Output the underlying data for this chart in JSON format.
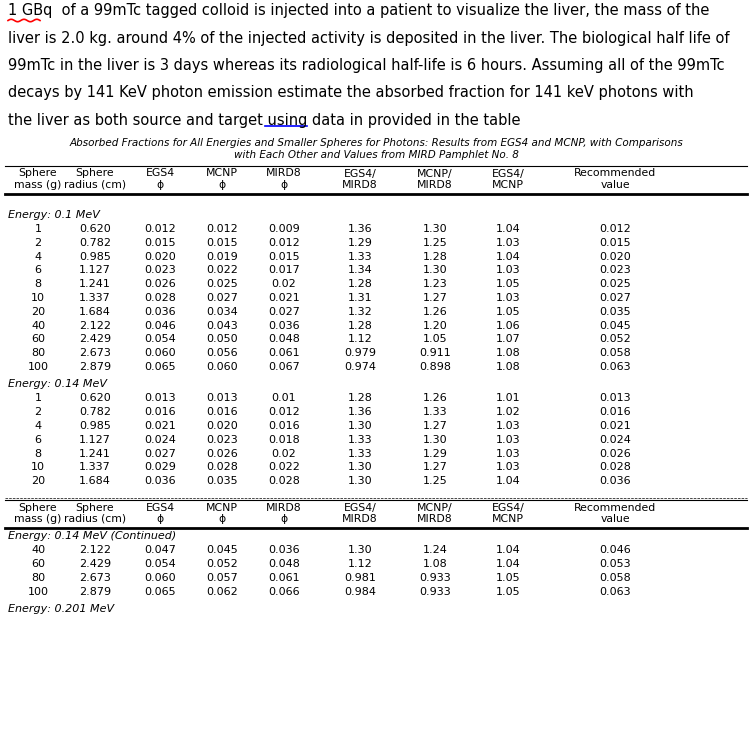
{
  "table_title_line1": "Absorbed Fractions for All Energies and Smaller Spheres for Photons: Results from EGS4 and MCNP, with Comparisons",
  "table_title_line2": "with Each Other and Values from MIRD Pamphlet No. 8",
  "col_headers": [
    "Sphere\nmass (g)",
    "Sphere\nradius (cm)",
    "EGS4\nϕ",
    "MCNP\nϕ",
    "MIRD8\nϕ",
    "EGS4/\nMIRD8",
    "MCNP/\nMIRD8",
    "EGS4/\nMCNP",
    "Recommended\nvalue"
  ],
  "energy_01_label": "Energy: 0.1 MeV",
  "energy_01_data": [
    [
      "1",
      "0.620",
      "0.012",
      "0.012",
      "0.009",
      "1.36",
      "1.30",
      "1.04",
      "0.012"
    ],
    [
      "2",
      "0.782",
      "0.015",
      "0.015",
      "0.012",
      "1.29",
      "1.25",
      "1.03",
      "0.015"
    ],
    [
      "4",
      "0.985",
      "0.020",
      "0.019",
      "0.015",
      "1.33",
      "1.28",
      "1.04",
      "0.020"
    ],
    [
      "6",
      "1.127",
      "0.023",
      "0.022",
      "0.017",
      "1.34",
      "1.30",
      "1.03",
      "0.023"
    ],
    [
      "8",
      "1.241",
      "0.026",
      "0.025",
      "0.02",
      "1.28",
      "1.23",
      "1.05",
      "0.025"
    ],
    [
      "10",
      "1.337",
      "0.028",
      "0.027",
      "0.021",
      "1.31",
      "1.27",
      "1.03",
      "0.027"
    ],
    [
      "20",
      "1.684",
      "0.036",
      "0.034",
      "0.027",
      "1.32",
      "1.26",
      "1.05",
      "0.035"
    ],
    [
      "40",
      "2.122",
      "0.046",
      "0.043",
      "0.036",
      "1.28",
      "1.20",
      "1.06",
      "0.045"
    ],
    [
      "60",
      "2.429",
      "0.054",
      "0.050",
      "0.048",
      "1.12",
      "1.05",
      "1.07",
      "0.052"
    ],
    [
      "80",
      "2.673",
      "0.060",
      "0.056",
      "0.061",
      "0.979",
      "0.911",
      "1.08",
      "0.058"
    ],
    [
      "100",
      "2.879",
      "0.065",
      "0.060",
      "0.067",
      "0.974",
      "0.898",
      "1.08",
      "0.063"
    ]
  ],
  "energy_014_label": "Energy: 0.14 MeV",
  "energy_014_data": [
    [
      "1",
      "0.620",
      "0.013",
      "0.013",
      "0.01",
      "1.28",
      "1.26",
      "1.01",
      "0.013"
    ],
    [
      "2",
      "0.782",
      "0.016",
      "0.016",
      "0.012",
      "1.36",
      "1.33",
      "1.02",
      "0.016"
    ],
    [
      "4",
      "0.985",
      "0.021",
      "0.020",
      "0.016",
      "1.30",
      "1.27",
      "1.03",
      "0.021"
    ],
    [
      "6",
      "1.127",
      "0.024",
      "0.023",
      "0.018",
      "1.33",
      "1.30",
      "1.03",
      "0.024"
    ],
    [
      "8",
      "1.241",
      "0.027",
      "0.026",
      "0.02",
      "1.33",
      "1.29",
      "1.03",
      "0.026"
    ],
    [
      "10",
      "1.337",
      "0.029",
      "0.028",
      "0.022",
      "1.30",
      "1.27",
      "1.03",
      "0.028"
    ],
    [
      "20",
      "1.684",
      "0.036",
      "0.035",
      "0.028",
      "1.30",
      "1.25",
      "1.04",
      "0.036"
    ]
  ],
  "energy_014_cont_label": "Energy: 0.14 MeV (Continued)",
  "energy_014_cont_data": [
    [
      "40",
      "2.122",
      "0.047",
      "0.045",
      "0.036",
      "1.30",
      "1.24",
      "1.04",
      "0.046"
    ],
    [
      "60",
      "2.429",
      "0.054",
      "0.052",
      "0.048",
      "1.12",
      "1.08",
      "1.04",
      "0.053"
    ],
    [
      "80",
      "2.673",
      "0.060",
      "0.057",
      "0.061",
      "0.981",
      "0.933",
      "1.05",
      "0.058"
    ],
    [
      "100",
      "2.879",
      "0.065",
      "0.062",
      "0.066",
      "0.984",
      "0.933",
      "1.05",
      "0.063"
    ]
  ],
  "energy_0201_label": "Energy: 0.201 MeV",
  "bg_color": "#ffffff",
  "text_color": "#000000",
  "intro_lines": [
    "1 GBq  of a 99mTc tagged colloid is injected into a patient to visualize the liver, the mass of the",
    "liver is 2.0 kg. around 4% of the injected activity is deposited in the liver. The biological half life of",
    "99mTc in the liver is 3 days whereas its radiological half-life is 6 hours. Assuming all of the 99mTc",
    "decays by 141 KeV photon emission estimate the absorbed fraction for 141 keV photons with",
    "the liver as both source and target using data in provided in the table"
  ]
}
